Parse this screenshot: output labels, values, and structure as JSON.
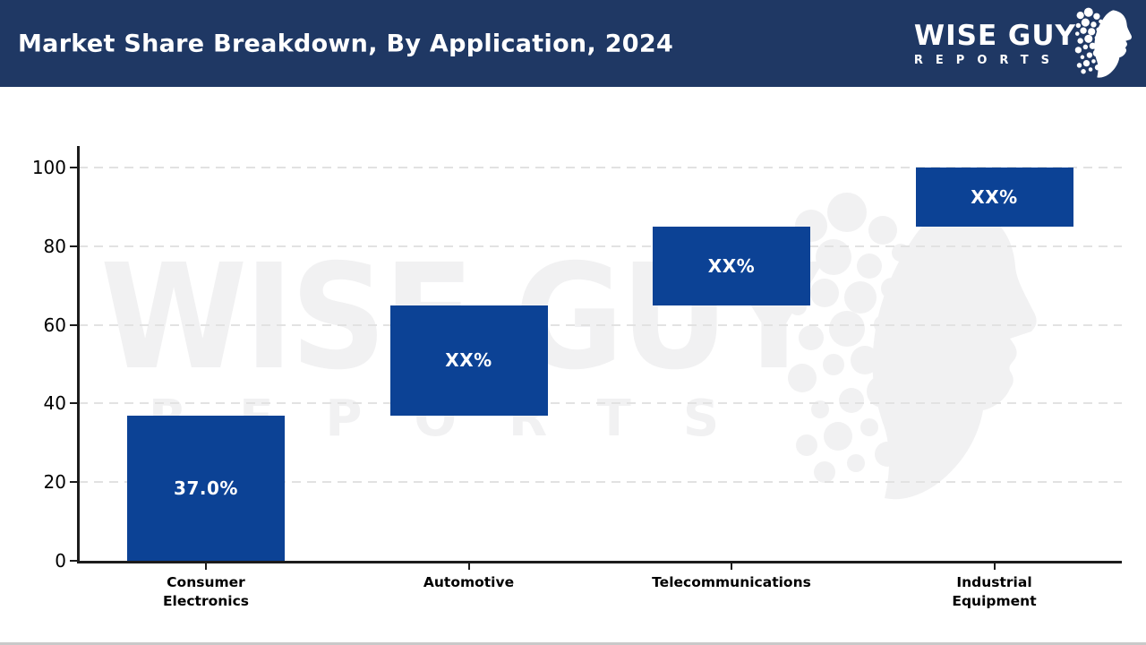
{
  "header": {
    "title": "Market Share Breakdown, By Application, 2024",
    "bg_color": "#1f3864",
    "logo": {
      "name": "WISE GUY",
      "sub": "REPORTS"
    }
  },
  "watermark": {
    "line1": "WISE GUY",
    "line2": "REPORTS"
  },
  "chart_data": {
    "type": "bar",
    "subtype": "waterfall",
    "title": "Market Share Breakdown, By Application, 2024",
    "categories": [
      "Consumer\nElectronics",
      "Automotive",
      "Telecommunications",
      "Industrial\nEquipment"
    ],
    "segments": [
      {
        "category": "Consumer Electronics",
        "start": 0,
        "end": 37,
        "label": "37.0%"
      },
      {
        "category": "Automotive",
        "start": 37,
        "end": 65,
        "label": "XX%"
      },
      {
        "category": "Telecommunications",
        "start": 65,
        "end": 85,
        "label": "XX%"
      },
      {
        "category": "Industrial Equipment",
        "start": 85,
        "end": 100,
        "label": "XX%"
      }
    ],
    "y_ticks": [
      0,
      20,
      40,
      60,
      80,
      100
    ],
    "ylim": [
      0,
      105
    ],
    "grid": "horizontal-dashed",
    "legend": "none",
    "bar_color": "#0c4295",
    "bar_label_color": "#ffffff",
    "axis_color": "#1c1c1c"
  }
}
